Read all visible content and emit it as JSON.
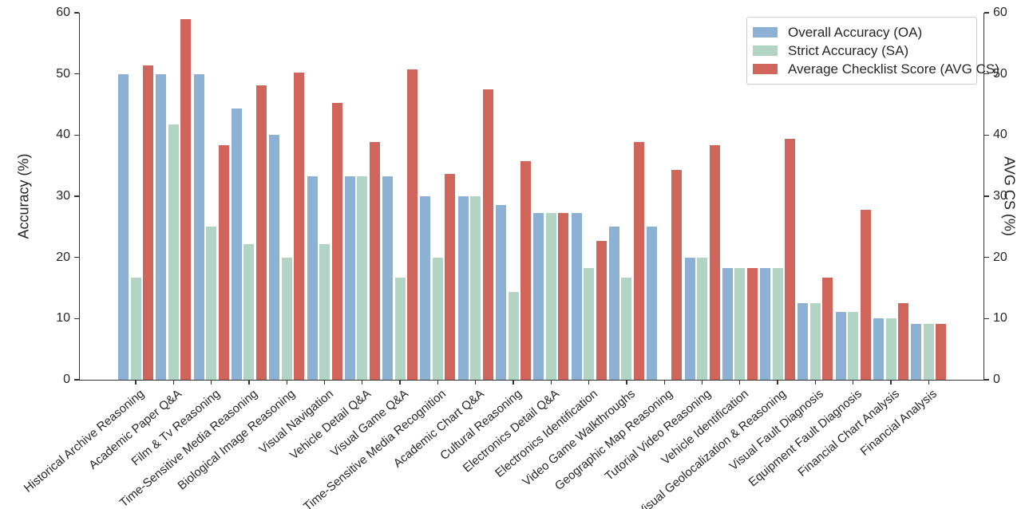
{
  "chart_data": {
    "type": "bar",
    "title": "",
    "ylabel_left": "Accuracy (%)",
    "ylabel_right": "AVG CS (%)",
    "ylim": [
      0,
      60
    ],
    "yticks": [
      0,
      10,
      20,
      30,
      40,
      50,
      60
    ],
    "grid": false,
    "legend_position": "upper right",
    "xtick_rotation_deg": 40,
    "categories": [
      "Historical Archive Reasoning",
      "Academic Paper Q&A",
      "Film & Tv Reasoning",
      "Time-Sensitive Media Reasoning",
      "Biological Image Reasoning",
      "Visual Navigation",
      "Vehicle Detail Q&A",
      "Visual Game Q&A",
      "Time-Sensitive Media Recognition",
      "Academic Chart Q&A",
      "Cultural Reasoning",
      "Electronics Detail Q&A",
      "Electronics Identification",
      "Video Game Walkthroughs",
      "Geographic Map Reasoning",
      "Tutorial Video Reasoning",
      "Vehicle Identification",
      "Visual Geolocalization & Reasoning",
      "Visual Fault Diagnosis",
      "Equipment Fault Diagnosis",
      "Financial Chart Analysis",
      "Financial Analysis"
    ],
    "series": [
      {
        "name": "Overall Accuracy (OA)",
        "color": "#8CB1D5",
        "axis": "left",
        "values": [
          50,
          50,
          50,
          44.4,
          40,
          33.3,
          33.3,
          33.3,
          30,
          30,
          28.6,
          27.3,
          27.3,
          25,
          25,
          20,
          18.2,
          18.2,
          12.5,
          11.1,
          10,
          9.1
        ]
      },
      {
        "name": "Strict Accuracy (SA)",
        "color": "#B2D4C4",
        "axis": "left",
        "values": [
          16.7,
          41.7,
          25,
          22.2,
          20,
          22.2,
          33.3,
          16.7,
          20,
          30,
          14.3,
          27.3,
          18.2,
          16.7,
          0,
          20,
          18.2,
          18.2,
          12.5,
          11.1,
          10,
          9.1
        ]
      },
      {
        "name": "Average Checklist Score (AVG CS)",
        "color": "#D0655B",
        "axis": "right",
        "values": [
          51.4,
          59,
          38.3,
          48.1,
          50.2,
          45.2,
          38.9,
          50.7,
          33.6,
          47.5,
          35.7,
          27.3,
          22.7,
          38.9,
          34.3,
          38.3,
          18.2,
          39.4,
          16.7,
          27.8,
          12.5,
          9.1
        ]
      }
    ]
  }
}
